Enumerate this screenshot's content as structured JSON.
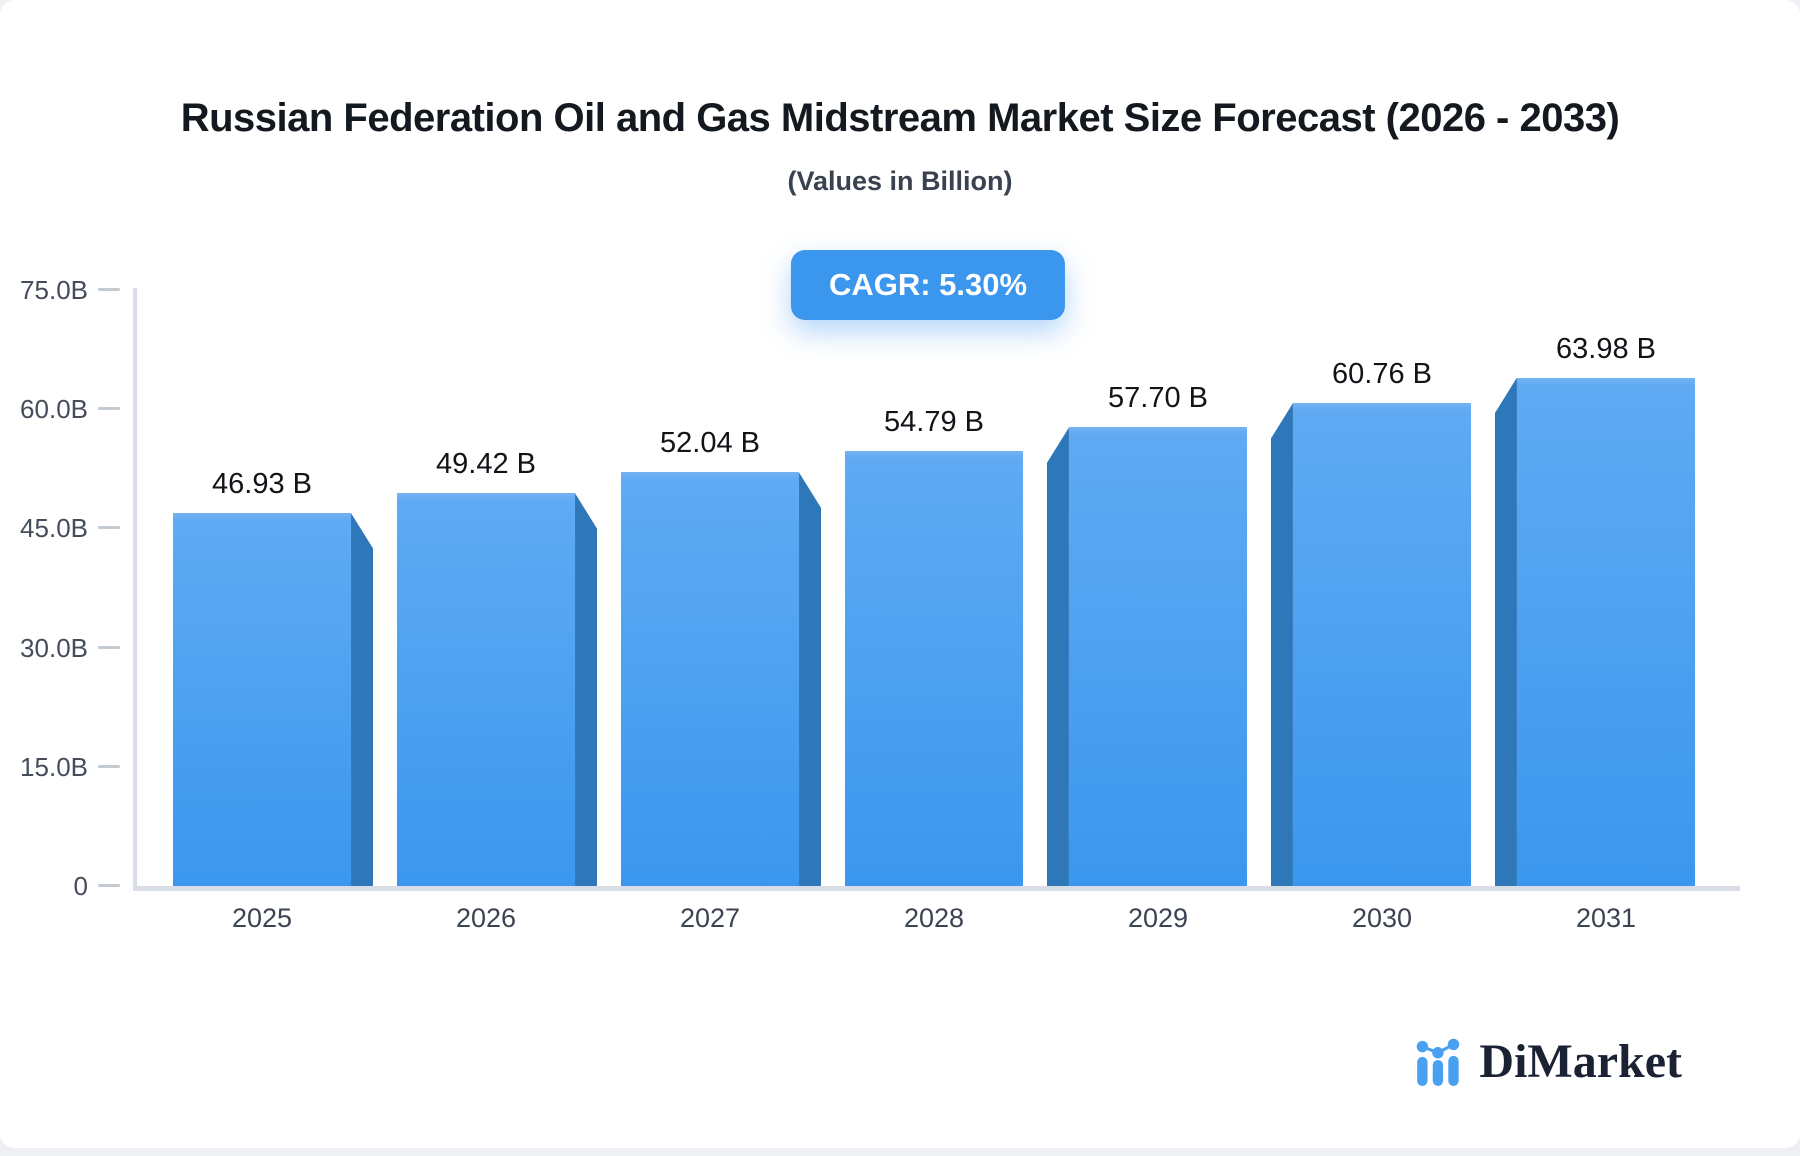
{
  "title": "Russian Federation Oil and Gas Midstream Market Size Forecast (2026 - 2033)",
  "subtitle": "(Values in Billion)",
  "badge": {
    "label": "CAGR: 5.30%",
    "color": "#3b96ed",
    "text_color": "#ffffff"
  },
  "chart_data": {
    "type": "bar",
    "title": "Russian Federation Oil and Gas Midstream Market Size Forecast (2026 - 2033)",
    "subtitle": "(Values in Billion)",
    "categories": [
      "2025",
      "2026",
      "2027",
      "2028",
      "2029",
      "2030",
      "2031"
    ],
    "values": [
      46.93,
      49.42,
      52.04,
      54.79,
      57.7,
      60.76,
      63.98
    ],
    "bar_labels": [
      "46.93 B",
      "49.42 B",
      "52.04 B",
      "54.79 B",
      "57.70 B",
      "60.76 B",
      "63.98 B"
    ],
    "xlabel": "",
    "ylabel": "",
    "ylim": [
      0,
      75
    ],
    "yticks": [
      {
        "label": "75.0B",
        "value": 75
      },
      {
        "label": "60.0B",
        "value": 60
      },
      {
        "label": "45.0B",
        "value": 45
      },
      {
        "label": "30.0B",
        "value": 30
      },
      {
        "label": "15.0B",
        "value": 15
      },
      {
        "label": "0",
        "value": 0
      }
    ],
    "grid": false,
    "legend": false,
    "annotations": [
      "CAGR: 5.30%"
    ],
    "bar_color_top": "#5faaf3",
    "bar_color_bottom": "#3b97ee",
    "bar_side_color": "#2e77b8",
    "axis_color": "#d9dee6"
  },
  "logo": {
    "text": "DiMarket",
    "icon": "bar-line-chart-icon",
    "text_color": "#1a2233",
    "accent_color": "#4aa0f0"
  }
}
